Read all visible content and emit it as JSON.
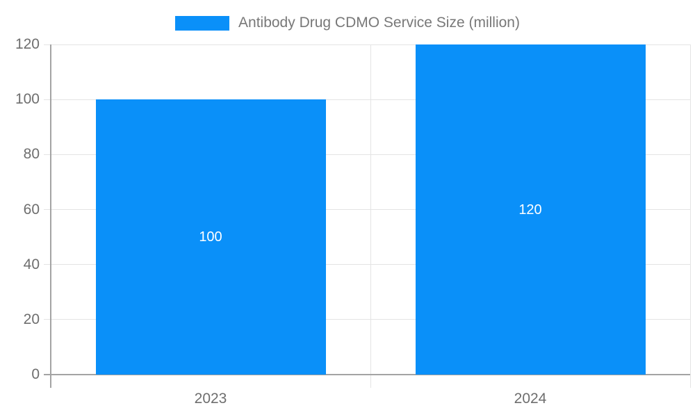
{
  "chart_data": {
    "type": "bar",
    "title": "Antibody Drug CDMO Service Size (million)",
    "categories": [
      "2023",
      "2024"
    ],
    "values": [
      100,
      120
    ],
    "value_labels": [
      "100",
      "120"
    ],
    "xlabel": "",
    "ylabel": "",
    "ylim": [
      0,
      120
    ],
    "yticks": [
      0,
      20,
      40,
      60,
      80,
      100,
      120
    ],
    "ytick_labels": [
      "0",
      "20",
      "40",
      "60",
      "80",
      "100",
      "120"
    ],
    "grid": true,
    "legend_position": "top-center",
    "legend_entries": [
      "Antibody Drug CDMO Service Size (million)"
    ]
  },
  "colors": {
    "bar": "#0a90f9",
    "bar_label": "#ffffff",
    "legend_text": "#787878",
    "tick_text": "#6e6e6e",
    "axis_line": "#a3a3a3",
    "gridline": "#e4e4e4",
    "background": "#ffffff"
  }
}
